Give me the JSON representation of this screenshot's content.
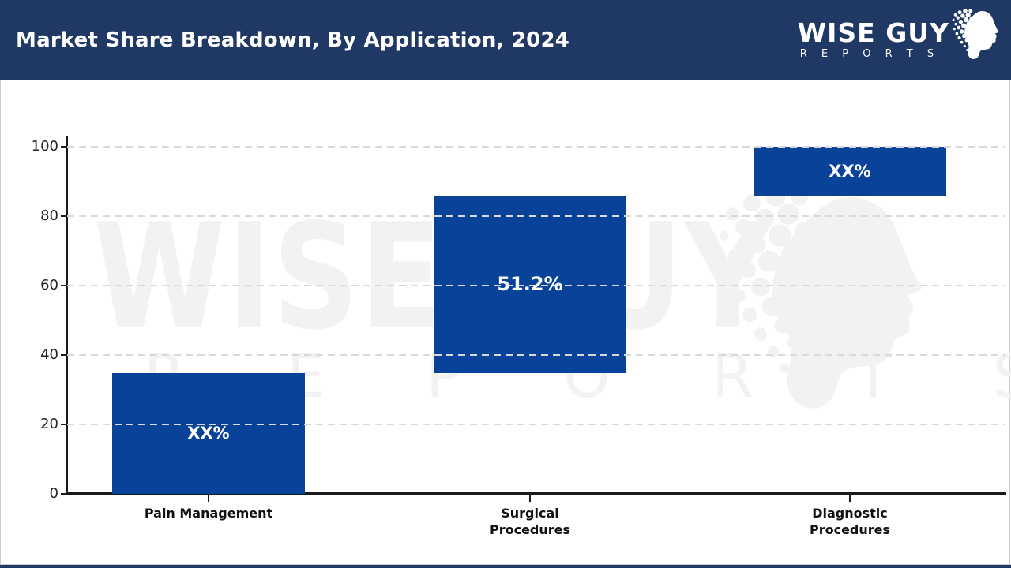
{
  "header": {
    "title": "Market Share Breakdown, By Application, 2024",
    "logo": {
      "line1": "WISE GUY",
      "line2": "R E P O R T S",
      "icon": "dotted-face-profile-icon"
    }
  },
  "watermark": {
    "line1": "WISE GUY",
    "line2": "R E P O R T S",
    "icon": "dotted-face-profile-icon"
  },
  "chart_data": {
    "type": "bar",
    "subtype": "waterfall-floating-bars",
    "title": "Market Share Breakdown, By Application, 2024",
    "categories": [
      "Pain Management",
      "Surgical Procedures",
      "Diagnostic Procedures"
    ],
    "category_label_lines": [
      [
        "Pain Management"
      ],
      [
        "Surgical",
        "Procedures"
      ],
      [
        "Diagnostic",
        "Procedures"
      ]
    ],
    "segments": [
      {
        "category": "Pain Management",
        "start": 0,
        "end": 34.8,
        "value_label": "XX%",
        "value_masked": true
      },
      {
        "category": "Surgical Procedures",
        "start": 34.8,
        "end": 86.0,
        "value_label": "51.2%",
        "value_masked": false
      },
      {
        "category": "Diagnostic Procedures",
        "start": 86.0,
        "end": 100,
        "value_label": "XX%",
        "value_masked": true
      }
    ],
    "yticks": [
      0,
      20,
      40,
      60,
      80,
      100
    ],
    "ylim": [
      0,
      103
    ],
    "xlabel": "",
    "ylabel": "",
    "grid": "horizontal-dashed",
    "legend": "none"
  },
  "colors": {
    "header_bg": "#1f3864",
    "footer_bg": "#1f3864",
    "bar": "#084399",
    "bar_label": "#ffffff",
    "grid": "#d9d9d9",
    "axis": "#1a1a1a",
    "watermark": "#f2f2f3",
    "title_text": "#ffffff"
  }
}
